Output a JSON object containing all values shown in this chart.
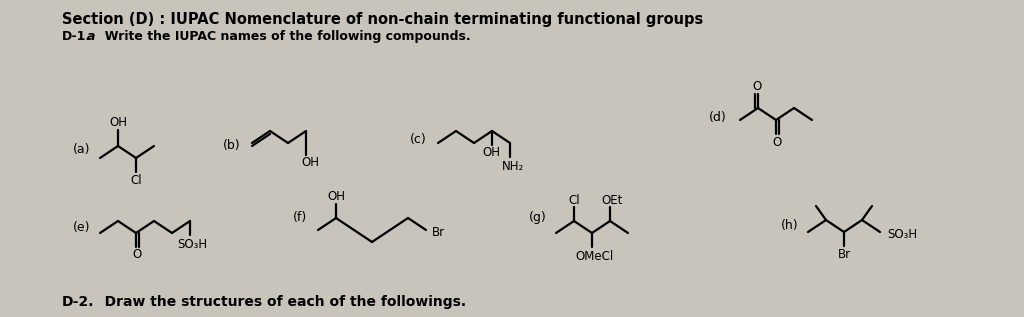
{
  "bg_color": "#c8c4bc",
  "line_color": "#000000",
  "lw": 1.6,
  "title1": "Section (D) : IUPAC Nomenclature of non-chain terminating functional groups",
  "title2_prefix": "D-1.",
  "title2_letter": "a",
  "title2_rest": "  Write the IUPAC names of the following compounds.",
  "bottom_prefix": "D-2.",
  "bottom_rest": "   Draw the structures of each of the followings.",
  "labels": [
    "(a)",
    "(b)",
    "(c)",
    "(d)",
    "(e)",
    "(f)",
    "(g)",
    "(h)"
  ]
}
